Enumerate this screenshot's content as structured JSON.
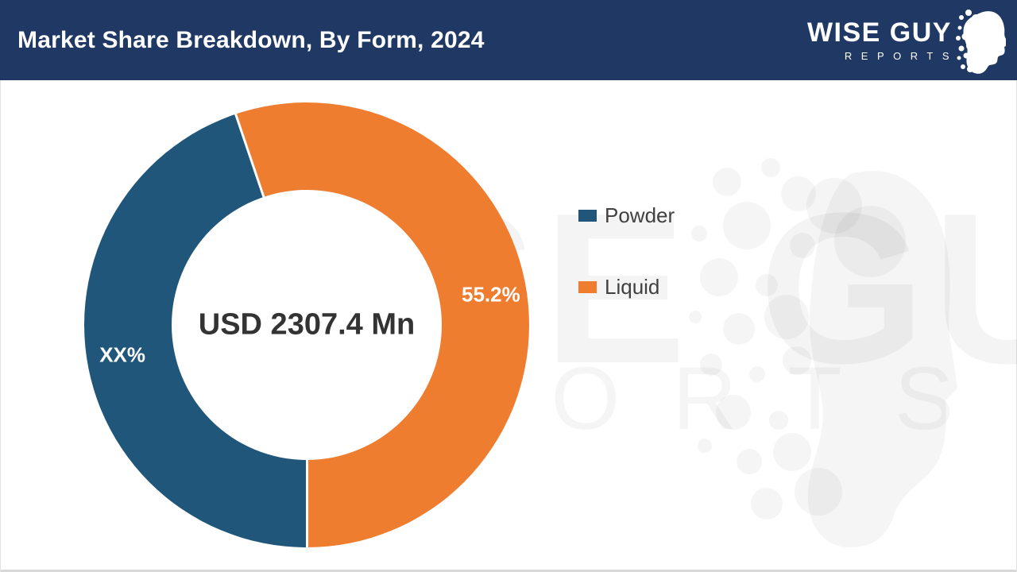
{
  "header": {
    "title": "Market Share Breakdown, By Form, 2024",
    "background_color": "#1F3864",
    "logo": {
      "name": "WISE GUY REPORTS",
      "line1": "WISE GUY",
      "line2": "REPORTS"
    }
  },
  "chart_data": {
    "type": "pie",
    "subtype": "donut",
    "title": "Market Share Breakdown, By Form, 2024",
    "center_label": "USD 2307.4 Mn",
    "categories": [
      "Powder",
      "Liquid"
    ],
    "values": [
      44.8,
      55.2
    ],
    "value_labels": [
      "XX%",
      "55.2%"
    ],
    "colors": [
      "#20567A",
      "#EE7D30"
    ],
    "start_angle_deg": 180,
    "direction": "clockwise",
    "inner_radius_ratio": 0.607,
    "separator_color": "#FFFFFF",
    "legend_position": "right",
    "legend": [
      {
        "label": "Powder",
        "color": "#20567A"
      },
      {
        "label": "Liquid",
        "color": "#EE7D30"
      }
    ]
  },
  "watermark": {
    "line1": "WISE GUY",
    "line2": "REPORTS"
  }
}
